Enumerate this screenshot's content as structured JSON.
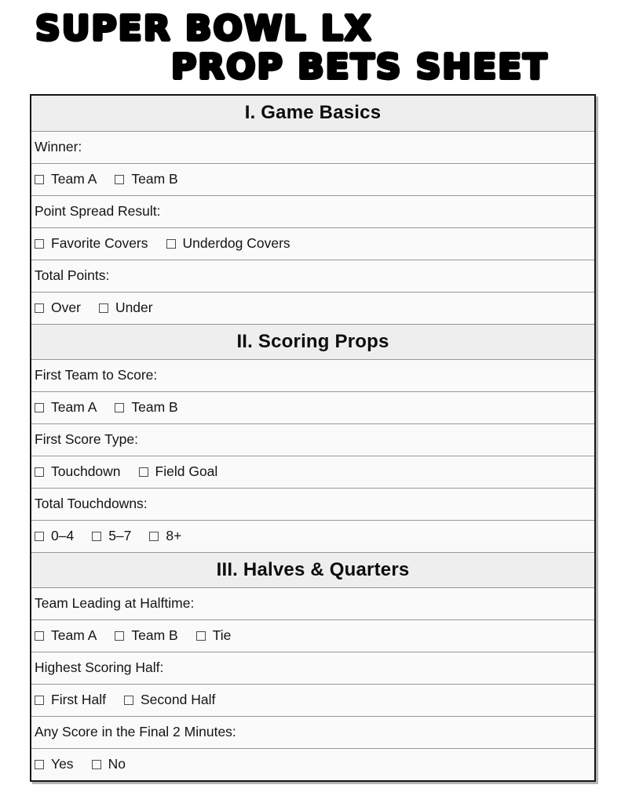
{
  "header": {
    "title_line1": "SUPER BOWL LX",
    "title_line2": "PROP BETS SHEET"
  },
  "sheet": {
    "sections": [
      {
        "title": "I. Game Basics",
        "rows": [
          {
            "type": "label",
            "text": "Winner:"
          },
          {
            "type": "options",
            "options": [
              "Team A",
              "Team B"
            ]
          },
          {
            "type": "label",
            "text": "Point Spread Result:"
          },
          {
            "type": "options",
            "options": [
              "Favorite Covers",
              "Underdog Covers"
            ]
          },
          {
            "type": "label",
            "text": "Total Points:"
          },
          {
            "type": "options",
            "options": [
              "Over",
              "Under"
            ]
          }
        ]
      },
      {
        "title": "II. Scoring Props",
        "rows": [
          {
            "type": "label",
            "text": "First Team to Score:"
          },
          {
            "type": "options",
            "options": [
              "Team A",
              "Team B"
            ]
          },
          {
            "type": "label",
            "text": "First Score Type:"
          },
          {
            "type": "options",
            "options": [
              "Touchdown",
              "Field Goal"
            ]
          },
          {
            "type": "label",
            "text": "Total Touchdowns:"
          },
          {
            "type": "options",
            "options": [
              "0–4",
              "5–7",
              "8+"
            ]
          }
        ]
      },
      {
        "title": "III. Halves & Quarters",
        "rows": [
          {
            "type": "label",
            "text": "Team Leading at Halftime:"
          },
          {
            "type": "options",
            "options": [
              "Team A",
              "Team B",
              "Tie"
            ]
          },
          {
            "type": "label",
            "text": "Highest Scoring Half:"
          },
          {
            "type": "options",
            "options": [
              "First Half",
              "Second Half"
            ]
          },
          {
            "type": "label",
            "text": "Any Score in the Final 2 Minutes:"
          },
          {
            "type": "options",
            "options": [
              "Yes",
              "No"
            ]
          }
        ]
      }
    ]
  },
  "colors": {
    "title_text": "#000000",
    "section_header_bg": "#eeeeef",
    "row_bg": "#fafafb",
    "outer_border": "#161616",
    "row_separator": "#97979c",
    "checkbox_border": "#4c4c4c",
    "body_text": "#141414"
  }
}
